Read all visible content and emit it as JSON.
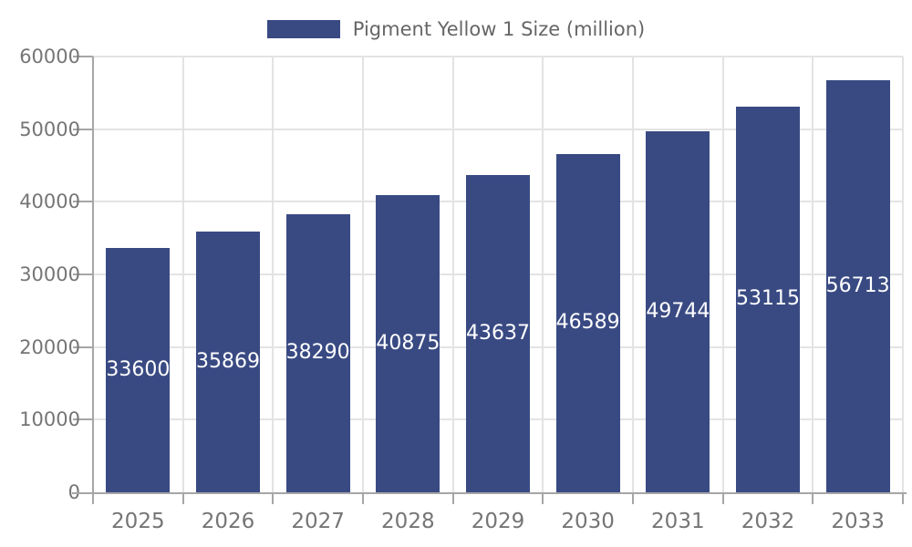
{
  "legend": {
    "label": "Pigment Yellow 1 Size (million)"
  },
  "chart_data": {
    "type": "bar",
    "title": "Pigment Yellow 1 Size (million)",
    "series_name": "Pigment Yellow 1 Size (million)",
    "categories": [
      "2025",
      "2026",
      "2027",
      "2028",
      "2029",
      "2030",
      "2031",
      "2032",
      "2033"
    ],
    "values": [
      33600,
      35869,
      38290,
      40875,
      43637,
      46589,
      49744,
      53115,
      56713
    ],
    "xlabel": "",
    "ylabel": "",
    "ylim": [
      0,
      60000
    ],
    "yticks": [
      0,
      10000,
      20000,
      30000,
      40000,
      50000,
      60000
    ],
    "grid": true,
    "legend_position": "top-center",
    "bar_labels_inside": true,
    "colors": {
      "bar": "#394A83",
      "bar_label": "#FFFFFF",
      "axis": "#A6A6A6",
      "gridline": "#E3E3E3",
      "tick_label": "#757575",
      "legend_text": "#666666",
      "background": "#FFFFFF"
    }
  }
}
